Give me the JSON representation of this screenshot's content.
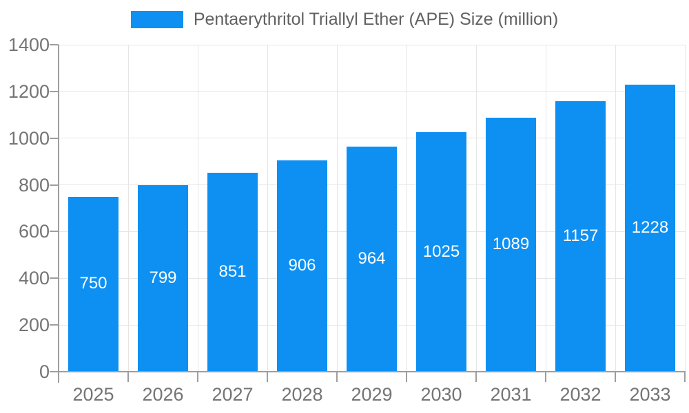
{
  "legend": {
    "label": "Pentaerythritol Triallyl Ether (APE) Size (million)"
  },
  "chart_data": {
    "type": "bar",
    "title": "Pentaerythritol Triallyl Ether (APE) Size (million)",
    "series_name": "Pentaerythritol Triallyl Ether (APE) Size (million)",
    "categories": [
      "2025",
      "2026",
      "2027",
      "2028",
      "2029",
      "2030",
      "2031",
      "2032",
      "2033"
    ],
    "values": [
      750,
      799,
      851,
      906,
      964,
      1025,
      1089,
      1157,
      1228
    ],
    "xlabel": "",
    "ylabel": "",
    "ylim": [
      0,
      1400
    ],
    "yticks": [
      0,
      200,
      400,
      600,
      800,
      1000,
      1200,
      1400
    ],
    "grid": true,
    "legend_position": "top",
    "value_labels": "inside-center"
  },
  "colors": {
    "bar": "#0e90f2",
    "grid": "#e6e6e6",
    "axis": "#9e9e9e",
    "tick_label": "#757575",
    "title_text": "#616161",
    "value_label": "#ffffff",
    "background": "#ffffff"
  }
}
